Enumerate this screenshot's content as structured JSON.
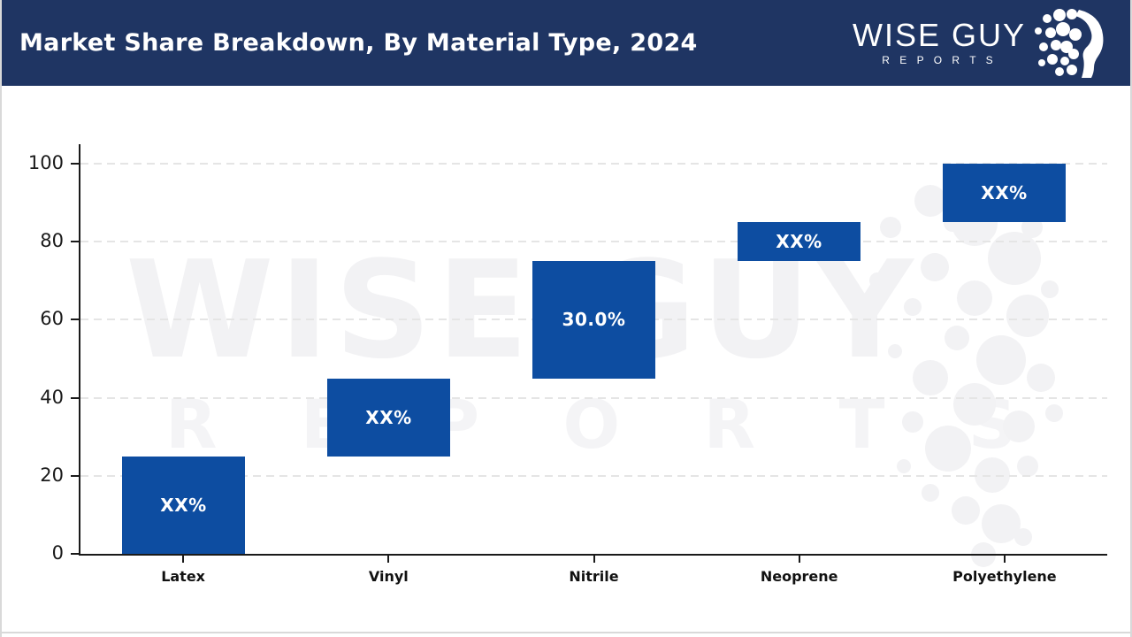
{
  "header": {
    "title": "Market Share Breakdown, By Material Type, 2024",
    "logo": {
      "line1": "WISE GUY",
      "line2": "R E P O R T S"
    }
  },
  "watermark": {
    "line1": "WISE GUY",
    "line2": "R E P O R T S"
  },
  "colors": {
    "header_bg": "#1f3563",
    "bar": "#0d4da1",
    "axis": "#1a1a1a",
    "grid": "#e5e5e5",
    "bar_label_text": "#ffffff",
    "watermark": "#f2f2f4"
  },
  "chart_data": {
    "type": "bar",
    "subtype": "floating-waterfall",
    "title": "Market Share Breakdown, By Material Type, 2024",
    "categories": [
      "Latex",
      "Vinyl",
      "Nitrile",
      "Neoprene",
      "Polyethylene"
    ],
    "series": [
      {
        "name": "Market Share",
        "segments": [
          [
            0,
            25
          ],
          [
            25,
            45
          ],
          [
            45,
            75
          ],
          [
            75,
            85
          ],
          [
            85,
            100
          ]
        ]
      }
    ],
    "bar_labels": [
      "XX%",
      "XX%",
      "30.0%",
      "XX%",
      "XX%"
    ],
    "implied_segment_sizes": [
      25,
      20,
      30,
      10,
      15
    ],
    "xlabel": "",
    "ylabel": "",
    "ylim": [
      0,
      100
    ],
    "yticks": [
      0,
      20,
      40,
      60,
      80,
      100
    ],
    "legend": "none",
    "grid": "horizontal-dashed"
  }
}
